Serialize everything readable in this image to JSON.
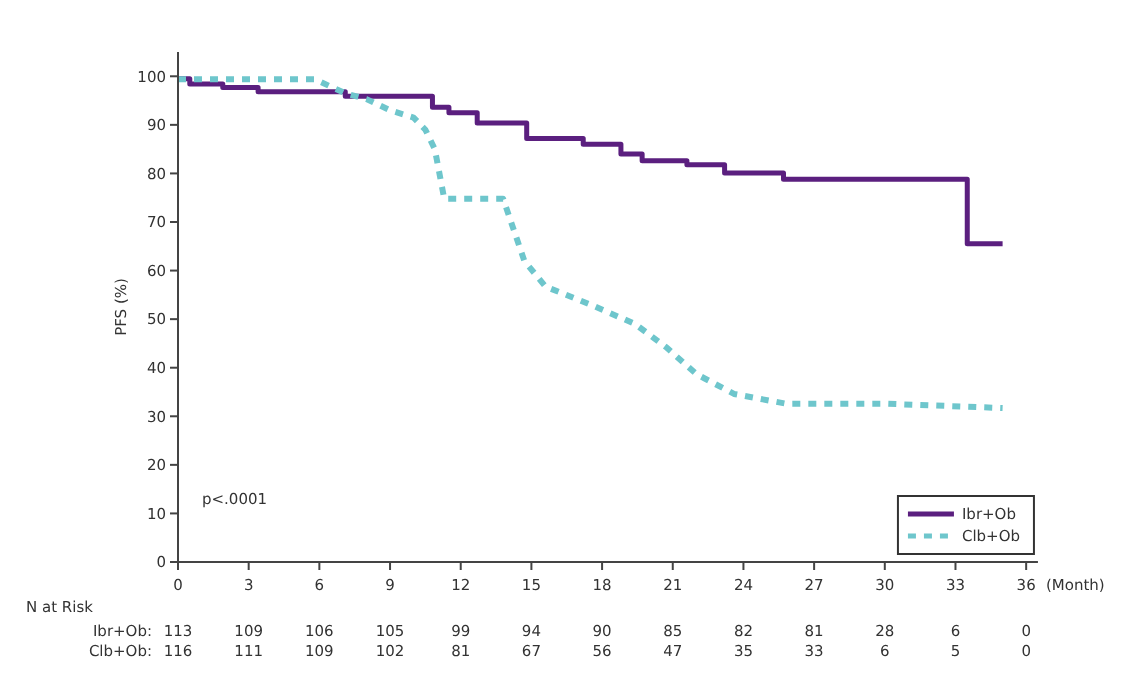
{
  "chart_data": {
    "type": "step",
    "xlabel": "(Month)",
    "ylabel": "PFS (%)",
    "xlim": [
      0,
      36.5
    ],
    "ylim": [
      0,
      105
    ],
    "xticks": [
      0,
      3,
      6,
      9,
      12,
      15,
      18,
      21,
      24,
      27,
      30,
      33,
      36
    ],
    "yticks": [
      0,
      10,
      20,
      30,
      40,
      50,
      60,
      70,
      80,
      90,
      100
    ],
    "legend": "bottom right",
    "grid": false,
    "series": [
      {
        "name": "Ibr+Ob",
        "type": "step",
        "color": "#5b1f7f",
        "line_style": "solid",
        "x": [
          0,
          0.5,
          1.9,
          3.4,
          7.1,
          10.8,
          11.5,
          12.7,
          14.8,
          17.2,
          18.8,
          19.7,
          21.6,
          23.2,
          25.7,
          33.5,
          35
        ],
        "values": [
          99.5,
          98.4,
          97.7,
          96.8,
          95.9,
          93.6,
          92.5,
          90.4,
          87.2,
          86,
          84,
          82.6,
          81.8,
          80.1,
          78.8,
          65.5,
          65.5
        ]
      },
      {
        "name": "Clb+Ob",
        "type": "line",
        "color": "#6ec6cc",
        "line_style": "dashed",
        "x": [
          0,
          5.8,
          7.1,
          8,
          9,
          10,
          10.5,
          10.9,
          11.3,
          13.8,
          14.7,
          15.6,
          17.7,
          19.4,
          20.7,
          22,
          23.6,
          25.8,
          30,
          35
        ],
        "values": [
          99.4,
          99.4,
          96.5,
          95.3,
          93,
          91.5,
          89,
          85,
          74.8,
          74.8,
          62,
          56.7,
          52.6,
          49,
          44.3,
          38.7,
          34.6,
          32.6,
          32.6,
          31.7
        ]
      }
    ],
    "annotations": [
      "p<.0001",
      "N at Risk",
      "Ibr+Ob:",
      "113",
      "109",
      "106",
      "105",
      "99",
      "94",
      "90",
      "85",
      "82",
      "81",
      "28",
      "6",
      "0",
      "Clb+Ob:",
      "116",
      "111",
      "109",
      "102",
      "81",
      "67",
      "56",
      "47",
      "35",
      "33",
      "6",
      "5",
      "0"
    ]
  }
}
